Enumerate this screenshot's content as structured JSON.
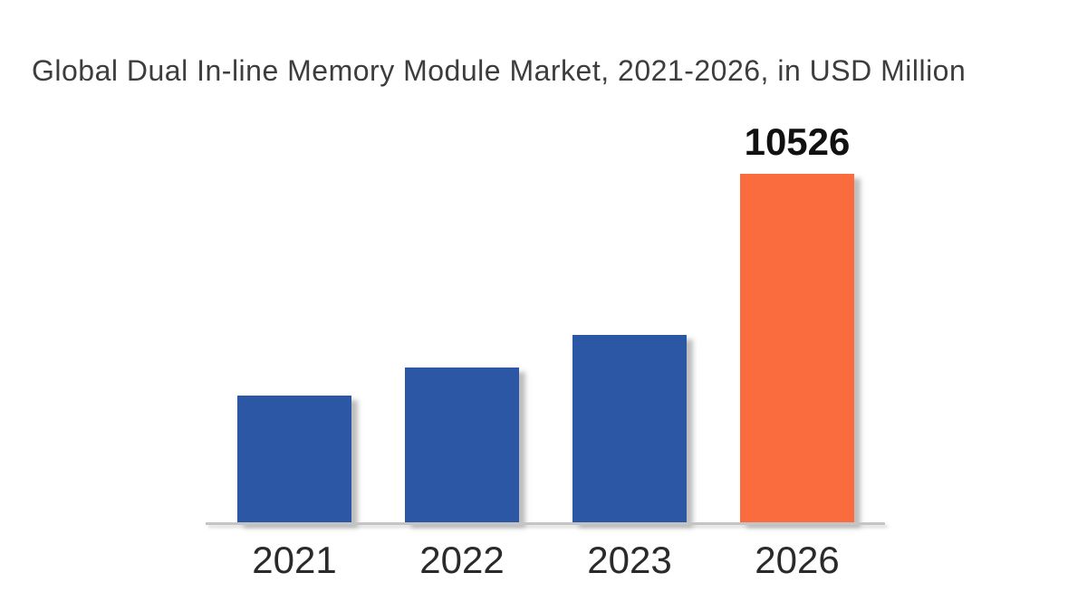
{
  "chart_data": {
    "type": "bar",
    "title": "Global Dual In-line Memory Module Market, 2021-2026, in USD Million",
    "categories": [
      "2021",
      "2022",
      "2023",
      "2026"
    ],
    "values": [
      3840,
      4680,
      5660,
      10526
    ],
    "data_labels": [
      "",
      "",
      "",
      "10526"
    ],
    "xlabel": "",
    "ylabel": "",
    "ylim": [
      0,
      10526
    ],
    "grid": false,
    "legend": false,
    "bar_colors": [
      "#2b57a5",
      "#2b57a5",
      "#2b57a5",
      "#fa6c3e"
    ],
    "accent_colors": {
      "blue": "#2b57a5",
      "orange": "#fa6c3e",
      "axis_line": "#c4c4c4",
      "title_text": "#3d3d3d",
      "tick_text": "#2a2a2a",
      "data_label_text": "#111111"
    }
  }
}
